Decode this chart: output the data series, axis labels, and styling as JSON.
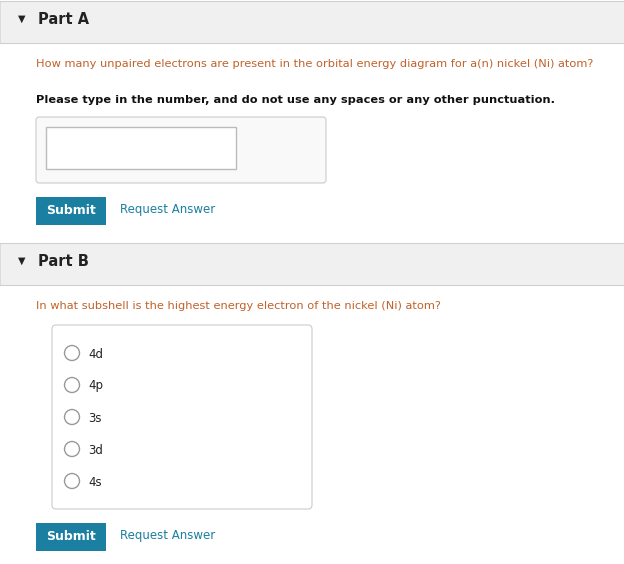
{
  "bg_color": "#ffffff",
  "header_bg": "#f0f0f0",
  "border_color": "#d0d0d0",
  "text_color_dark": "#222222",
  "text_color_question": "#c0622a",
  "text_color_instruction": "#111111",
  "link_color": "#1a7fa0",
  "button_bg": "#1a7fa0",
  "button_text": "#ffffff",
  "radio_border": "#999999",
  "input_border": "#bbbbbb",
  "input_bg": "#ffffff",
  "outer_box_bg": "#f9f9f9",
  "outer_box_border": "#cccccc",
  "partA_header": "Part A",
  "partA_question": "How many unpaired electrons are present in the orbital energy diagram for a(n) nickel (Ni) atom?",
  "partA_instruction": "Please type in the number, and do not use any spaces or any other punctuation.",
  "partB_header": "Part B",
  "partB_question": "In what subshell is the highest energy electron of the nickel (Ni) atom?",
  "partB_options": [
    "4d",
    "4p",
    "3s",
    "3d",
    "4s"
  ],
  "submit_text": "Submit",
  "request_answer_text": "Request Answer",
  "arrow_symbol": "▼",
  "fig_w": 6.24,
  "fig_h": 5.64,
  "dpi": 100
}
